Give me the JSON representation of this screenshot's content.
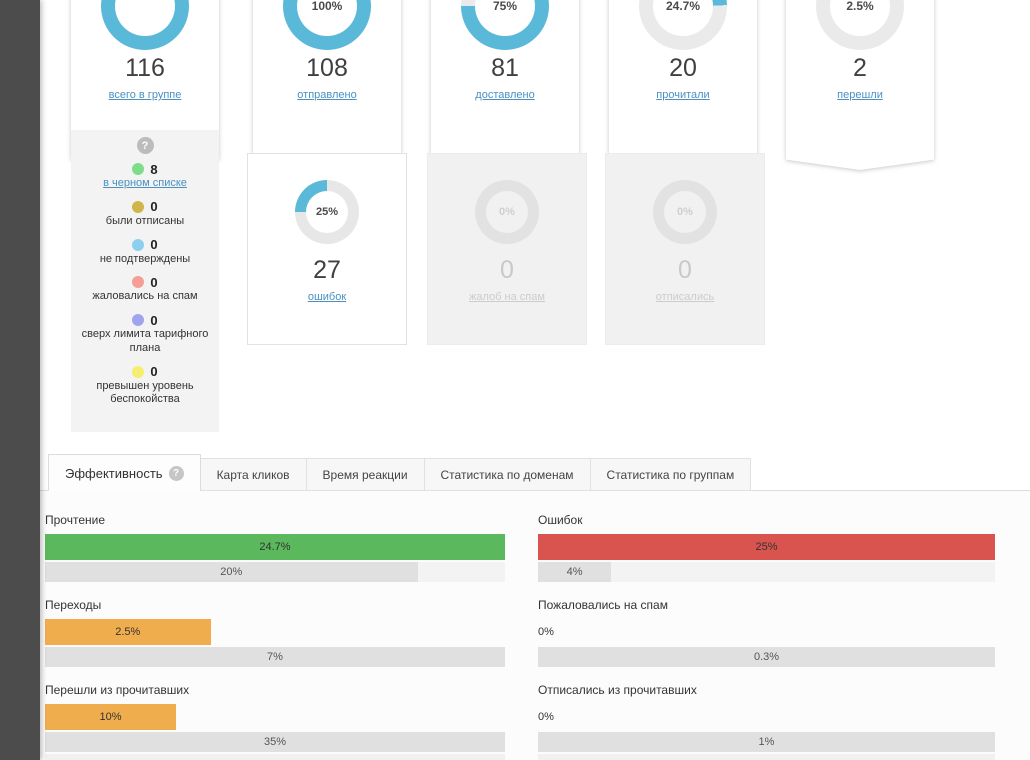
{
  "top_cards": [
    {
      "percent": "",
      "value": "116",
      "label": "всего в группе",
      "donut": {
        "fill": 100,
        "color": "#5ab9d8",
        "rest": "#eaeaea",
        "from": 0
      }
    },
    {
      "percent": "100%",
      "value": "108",
      "label": "отправлено",
      "donut": {
        "fill": 100,
        "color": "#5ab9d8",
        "rest": "#eaeaea",
        "from": 0
      }
    },
    {
      "percent": "75%",
      "value": "81",
      "label": "доставлено",
      "donut": {
        "fill": 75,
        "color": "#5ab9d8",
        "rest": "#eaeaea",
        "from": 0
      }
    },
    {
      "percent": "24.7%",
      "value": "20",
      "label": "прочитали",
      "donut": {
        "fill": 24.7,
        "color": "#5ab9d8",
        "rest": "#eaeaea",
        "from": 0
      }
    },
    {
      "percent": "2.5%",
      "value": "2",
      "label": "перешли",
      "donut": {
        "fill": 2.5,
        "color": "#5ab9d8",
        "rest": "#eaeaea",
        "from": 0
      }
    }
  ],
  "legend": {
    "help_icon": "?",
    "items": [
      {
        "color": "#7edd8a",
        "value": "8",
        "label": "в черном списке"
      },
      {
        "color": "#cfb54a",
        "value": "0",
        "label": "были отписаны"
      },
      {
        "color": "#8ecfee",
        "value": "0",
        "label": "не подтверждены"
      },
      {
        "color": "#f59e96",
        "value": "0",
        "label": "жаловались на спам"
      },
      {
        "color": "#a0a4ef",
        "value": "0",
        "label": "сверх лимита тарифного плана"
      },
      {
        "color": "#f6ee6e",
        "value": "0",
        "label": "превышен уровень беспокойства"
      }
    ]
  },
  "second_cards": [
    {
      "percent": "25%",
      "value": "27",
      "label": "ошибок",
      "donut": {
        "fill": 25,
        "color": "#5ab9d8",
        "rest": "#e7e7e7",
        "from": 270
      }
    },
    {
      "percent": "0%",
      "value": "0",
      "label": "жалоб на спам",
      "donut": {
        "fill": 0,
        "color": "#e2e2e2",
        "rest": "#e2e2e2",
        "from": 0
      }
    },
    {
      "percent": "0%",
      "value": "0",
      "label": "отписались",
      "donut": {
        "fill": 0,
        "color": "#e2e2e2",
        "rest": "#e2e2e2",
        "from": 0
      }
    }
  ],
  "tabs": [
    {
      "label": "Эффективность",
      "help": "?"
    },
    {
      "label": "Карта кликов"
    },
    {
      "label": "Время реакции"
    },
    {
      "label": "Статистика по доменам"
    },
    {
      "label": "Статистика по группам"
    }
  ],
  "metrics": {
    "left": [
      {
        "label": "Прочтение",
        "value": "24.7%",
        "value_width": 100,
        "color": "#5cb85c",
        "avg": "20%",
        "avg_width": 81
      },
      {
        "label": "Переходы",
        "value": "2.5%",
        "value_width": 36,
        "color": "#f0ad4e",
        "avg": "7%",
        "avg_width": 100
      },
      {
        "label": "Перешли из прочитавших",
        "value": "10%",
        "value_width": 28.5,
        "color": "#f0ad4e",
        "avg": "35%",
        "avg_width": 100
      }
    ],
    "right": [
      {
        "label": "Ошибок",
        "value": "25%",
        "value_width": 100,
        "color": "#d9534f",
        "avg": "4%",
        "avg_width": 16
      },
      {
        "label": "Пожаловались на спам",
        "value": "0%",
        "value_width": 0,
        "color": "",
        "avg": "0.3%",
        "avg_width": 100
      },
      {
        "label": "Отписались из прочитавших",
        "value": "0%",
        "value_width": 0,
        "color": "",
        "avg": "1%",
        "avg_width": 100
      }
    ]
  }
}
